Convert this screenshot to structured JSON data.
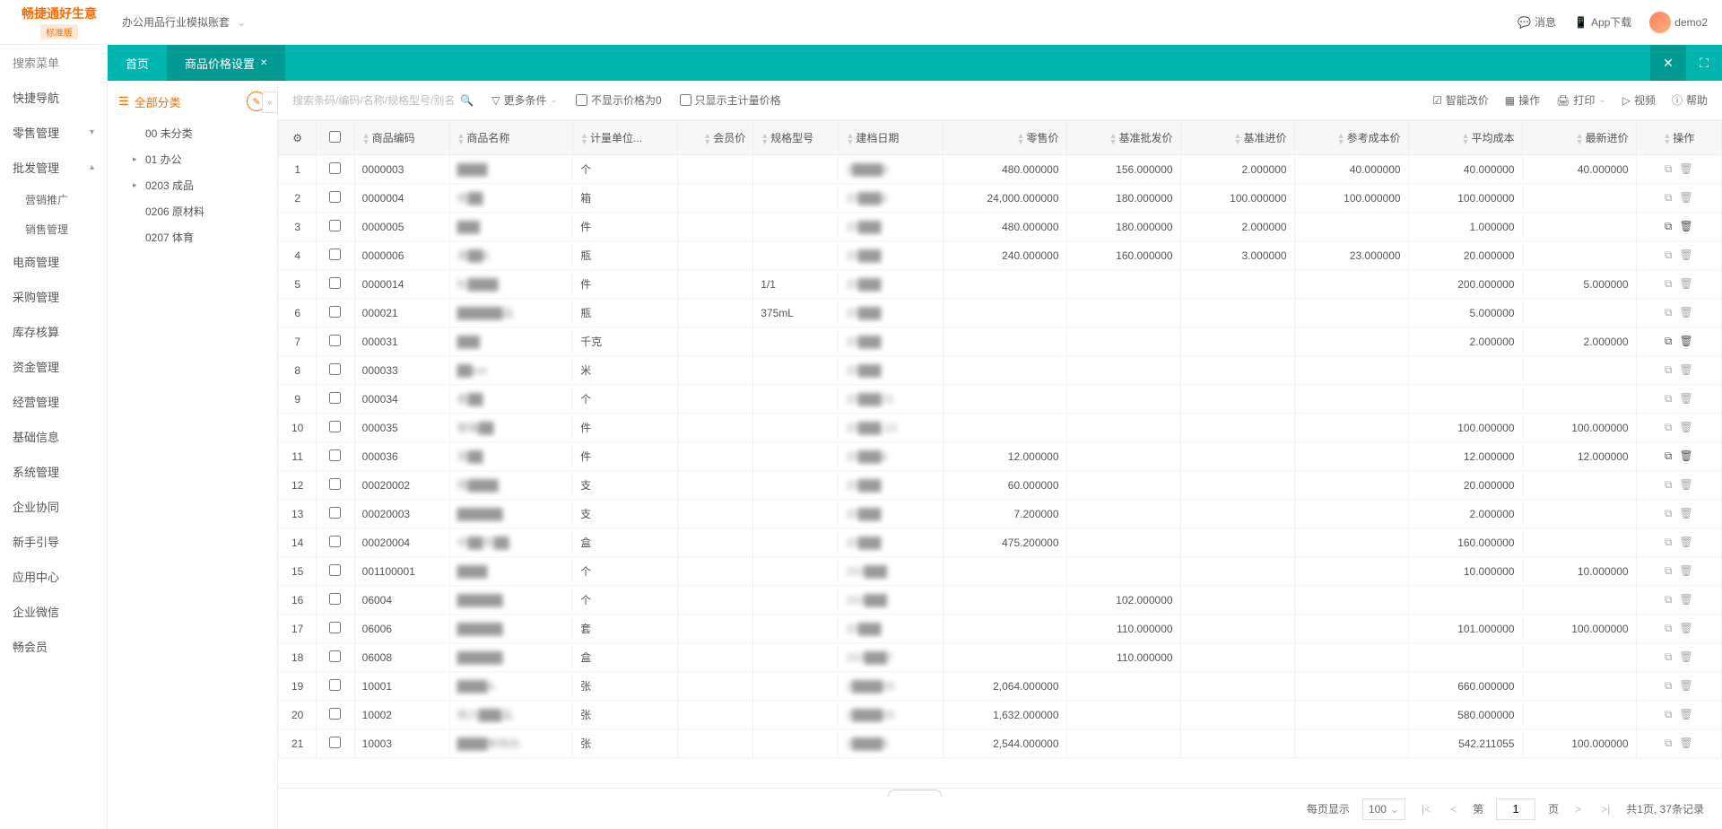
{
  "header": {
    "logo_text": "畅捷通好生意",
    "logo_tag": "标准版",
    "account_name": "办公用品行业模拟账套",
    "msg": "消息",
    "download": "App下载",
    "user": "demo2"
  },
  "tabs": {
    "home": "首页",
    "active": "商品价格设置"
  },
  "sidebar": {
    "search": "搜索菜单",
    "items": [
      {
        "label": "快捷导航",
        "arrow": ""
      },
      {
        "label": "零售管理",
        "arrow": "▾"
      },
      {
        "label": "批发管理",
        "arrow": "▴",
        "expanded": true,
        "subs": [
          "营销推广",
          "销售管理"
        ]
      },
      {
        "label": "电商管理",
        "arrow": ""
      },
      {
        "label": "采购管理",
        "arrow": ""
      },
      {
        "label": "库存核算",
        "arrow": ""
      },
      {
        "label": "资金管理",
        "arrow": ""
      },
      {
        "label": "经营管理",
        "arrow": ""
      },
      {
        "label": "基础信息",
        "arrow": ""
      },
      {
        "label": "系统管理",
        "arrow": ""
      },
      {
        "label": "企业协同",
        "arrow": ""
      },
      {
        "label": "新手引导",
        "arrow": ""
      },
      {
        "label": "应用中心",
        "arrow": ""
      },
      {
        "label": "企业微信",
        "arrow": ""
      },
      {
        "label": "畅会员",
        "arrow": ""
      }
    ]
  },
  "category": {
    "title": "全部分类",
    "tree": [
      {
        "label": "00 未分类",
        "tri": ""
      },
      {
        "label": "01 办公",
        "tri": "▸"
      },
      {
        "label": "0203 成品",
        "tri": "▸"
      },
      {
        "label": "0206 原材料",
        "tri": ""
      },
      {
        "label": "0207 体育",
        "tri": ""
      }
    ]
  },
  "toolbar": {
    "search_ph": "搜索条码/编码/名称/规格型号/别名",
    "more": "更多条件",
    "hide_zero": "不显示价格为0",
    "only_unit": "只显示主计量价格",
    "smart": "智能改价",
    "ops": "操作",
    "print": "打印",
    "video": "视频",
    "help": "帮助"
  },
  "columns": [
    "",
    "",
    "商品编码",
    "商品名称",
    "计量单位...",
    "会员价",
    "规格型号",
    "建档日期",
    "零售价",
    "基准批发价",
    "基准进价",
    "参考成本价",
    "平均成本",
    "最新进价",
    "操作"
  ],
  "rows": [
    {
      "n": 1,
      "code": "0000003",
      "name": "████",
      "unit": "个",
      "member": "",
      "spec": "",
      "date": "2████0",
      "retail": "480.000000",
      "whole": "156.000000",
      "base": "2.000000",
      "ref": "40.000000",
      "avg": "40.000000",
      "last": "40.000000",
      "op": "idle"
    },
    {
      "n": 2,
      "code": "0000004",
      "name": "收██",
      "unit": "箱",
      "member": "",
      "spec": "",
      "date": "20███8",
      "retail": "24,000.000000",
      "whole": "180.000000",
      "base": "100.000000",
      "ref": "100.000000",
      "avg": "100.000000",
      "last": "",
      "op": "idle"
    },
    {
      "n": 3,
      "code": "0000005",
      "name": "███",
      "unit": "件",
      "member": "",
      "spec": "",
      "date": "20███",
      "retail": "480.000000",
      "whole": "180.000000",
      "base": "2.000000",
      "ref": "",
      "avg": "1.000000",
      "last": "",
      "op": "active"
    },
    {
      "n": 4,
      "code": "0000006",
      "name": "液██K",
      "unit": "瓶",
      "member": "",
      "spec": "",
      "date": "20███",
      "retail": "240.000000",
      "whole": "160.000000",
      "base": "3.000000",
      "ref": "23.000000",
      "avg": "20.000000",
      "last": "",
      "op": "idle"
    },
    {
      "n": 5,
      "code": "0000014",
      "name": "杜████",
      "unit": "件",
      "member": "",
      "spec": "1/1",
      "date": "20███",
      "retail": "",
      "whole": "",
      "base": "",
      "ref": "",
      "avg": "200.000000",
      "last": "5.000000",
      "op": "idle"
    },
    {
      "n": 6,
      "code": "000021",
      "name": "██████品",
      "unit": "瓶",
      "member": "",
      "spec": "375mL",
      "date": "20███",
      "retail": "",
      "whole": "",
      "base": "",
      "ref": "",
      "avg": "5.000000",
      "last": "",
      "op": "idle"
    },
    {
      "n": 7,
      "code": "000031",
      "name": "███",
      "unit": "千克",
      "member": "",
      "spec": "",
      "date": "20███",
      "retail": "",
      "whole": "",
      "base": "",
      "ref": "",
      "avg": "2.000000",
      "last": "2.000000",
      "op": "active"
    },
    {
      "n": 8,
      "code": "000033",
      "name": "██est",
      "unit": "米",
      "member": "",
      "spec": "",
      "date": "20███",
      "retail": "",
      "whole": "",
      "base": "",
      "ref": "",
      "avg": "",
      "last": "",
      "op": "idle"
    },
    {
      "n": 9,
      "code": "000034",
      "name": "奥██",
      "unit": "个",
      "member": "",
      "spec": "",
      "date": "20███23",
      "retail": "",
      "whole": "",
      "base": "",
      "ref": "",
      "avg": "",
      "last": "",
      "op": "idle"
    },
    {
      "n": 10,
      "code": "000035",
      "name": "玻璃██",
      "unit": "件",
      "member": "",
      "spec": "",
      "date": "20███-13",
      "retail": "",
      "whole": "",
      "base": "",
      "ref": "",
      "avg": "100.000000",
      "last": "100.000000",
      "op": "idle"
    },
    {
      "n": 11,
      "code": "000036",
      "name": "测██",
      "unit": "件",
      "member": "",
      "spec": "",
      "date": "20███8",
      "retail": "12.000000",
      "whole": "",
      "base": "",
      "ref": "",
      "avg": "12.000000",
      "last": "12.000000",
      "op": "active"
    },
    {
      "n": 12,
      "code": "00020002",
      "name": "得████.",
      "unit": "支",
      "member": "",
      "spec": "",
      "date": "20███",
      "retail": "60.000000",
      "whole": "",
      "base": "",
      "ref": "",
      "avg": "20.000000",
      "last": "",
      "op": "idle"
    },
    {
      "n": 13,
      "code": "00020003",
      "name": "██████.",
      "unit": "支",
      "member": "",
      "spec": "",
      "date": "20███",
      "retail": "7.200000",
      "whole": "",
      "base": "",
      "ref": "",
      "avg": "2.000000",
      "last": "",
      "op": "idle"
    },
    {
      "n": 14,
      "code": "00020004",
      "name": "中██写██.",
      "unit": "盒",
      "member": "",
      "spec": "",
      "date": "20███",
      "retail": "475.200000",
      "whole": "",
      "base": "",
      "ref": "",
      "avg": "160.000000",
      "last": "",
      "op": "idle"
    },
    {
      "n": 15,
      "code": "001100001",
      "name": "████",
      "unit": "个",
      "member": "",
      "spec": "",
      "date": "202███",
      "retail": "",
      "whole": "",
      "base": "",
      "ref": "",
      "avg": "10.000000",
      "last": "10.000000",
      "op": "idle"
    },
    {
      "n": 16,
      "code": "06004",
      "name": "██████.",
      "unit": "个",
      "member": "",
      "spec": "",
      "date": "202███",
      "retail": "",
      "whole": "102.000000",
      "base": "",
      "ref": "",
      "avg": "",
      "last": "",
      "op": "idle"
    },
    {
      "n": 17,
      "code": "06006",
      "name": "██████.",
      "unit": "套",
      "member": "",
      "spec": "",
      "date": "20███",
      "retail": "",
      "whole": "110.000000",
      "base": "",
      "ref": "",
      "avg": "101.000000",
      "last": "100.000000",
      "op": "idle"
    },
    {
      "n": 18,
      "code": "06008",
      "name": "██████",
      "unit": "盒",
      "member": "",
      "spec": "",
      "date": "202███7",
      "retail": "",
      "whole": "110.000000",
      "base": "",
      "ref": "",
      "avg": "",
      "last": "",
      "op": "idle"
    },
    {
      "n": 19,
      "code": "10001",
      "name": "████A.",
      "unit": "张",
      "member": "",
      "spec": "",
      "date": "2████05",
      "retail": "2,064.000000",
      "whole": "",
      "base": "",
      "ref": "",
      "avg": "660.000000",
      "last": "",
      "op": "idle"
    },
    {
      "n": 20,
      "code": "10002",
      "name": "扬力███品.",
      "unit": "张",
      "member": "",
      "spec": "",
      "date": "2████05",
      "retail": "1,632.000000",
      "whole": "",
      "base": "",
      "ref": "",
      "avg": "580.000000",
      "last": "",
      "op": "idle"
    },
    {
      "n": 21,
      "code": "10003",
      "name": "████新特办.",
      "unit": "张",
      "member": "",
      "spec": "",
      "date": "2████5",
      "retail": "2,544.000000",
      "whole": "",
      "base": "",
      "ref": "",
      "avg": "542.211055",
      "last": "100.000000",
      "op": "idle"
    }
  ],
  "pager": {
    "per_page_label": "每页显示",
    "per_page": "100",
    "page_label_pre": "第",
    "page": "1",
    "page_label_suf": "页",
    "total": "共1页, 37条记录"
  }
}
